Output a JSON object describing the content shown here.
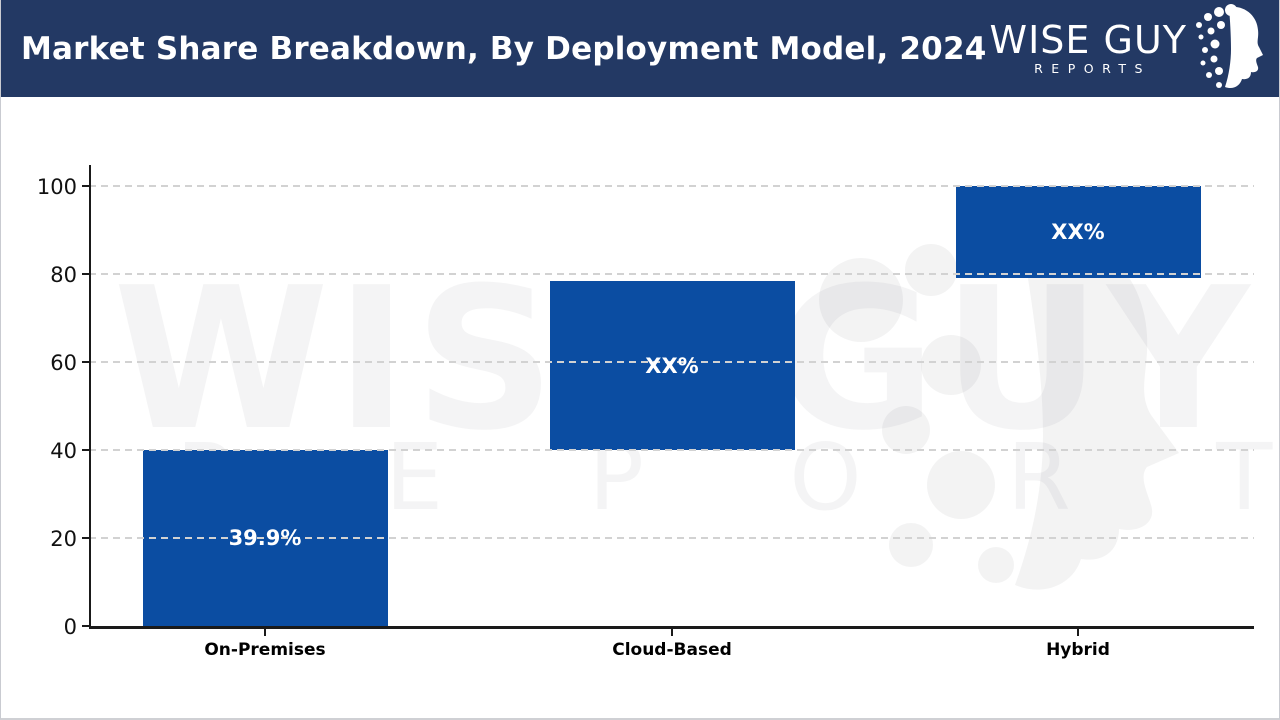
{
  "header": {
    "title": "Market Share Breakdown, By Deployment Model, 2024",
    "logo": {
      "line1": "WISE GUY",
      "line2": "REPORTS"
    }
  },
  "watermark": {
    "line1": "WISE GUY",
    "line2": "REPORTS"
  },
  "chart_data": {
    "type": "bar",
    "subtype": "waterfall",
    "title": "Market Share Breakdown, By Deployment Model, 2024",
    "categories": [
      "On-Premises",
      "Cloud-Based",
      "Hybrid"
    ],
    "segments": [
      {
        "category": "On-Premises",
        "start": 0,
        "end": 39.9,
        "label": "39.9%"
      },
      {
        "category": "Cloud-Based",
        "start": 39.9,
        "end": 78.4,
        "label": "XX%"
      },
      {
        "category": "Hybrid",
        "start": 79.0,
        "end": 100,
        "label": "XX%"
      }
    ],
    "yticks": [
      0,
      20,
      40,
      60,
      80,
      100
    ],
    "ylim": [
      0,
      100
    ],
    "grid": "dashed horizontal, drawn over bars",
    "legend": "none",
    "xlabel": "",
    "ylabel": ""
  },
  "colors": {
    "header_bg": "#233964",
    "bar_fill": "#0B4DA2",
    "grid": "#D2D2D2",
    "axis": "#1A1A1A",
    "bar_label_text": "#FFFFFF",
    "watermark_gray": "#F2F2F4"
  }
}
